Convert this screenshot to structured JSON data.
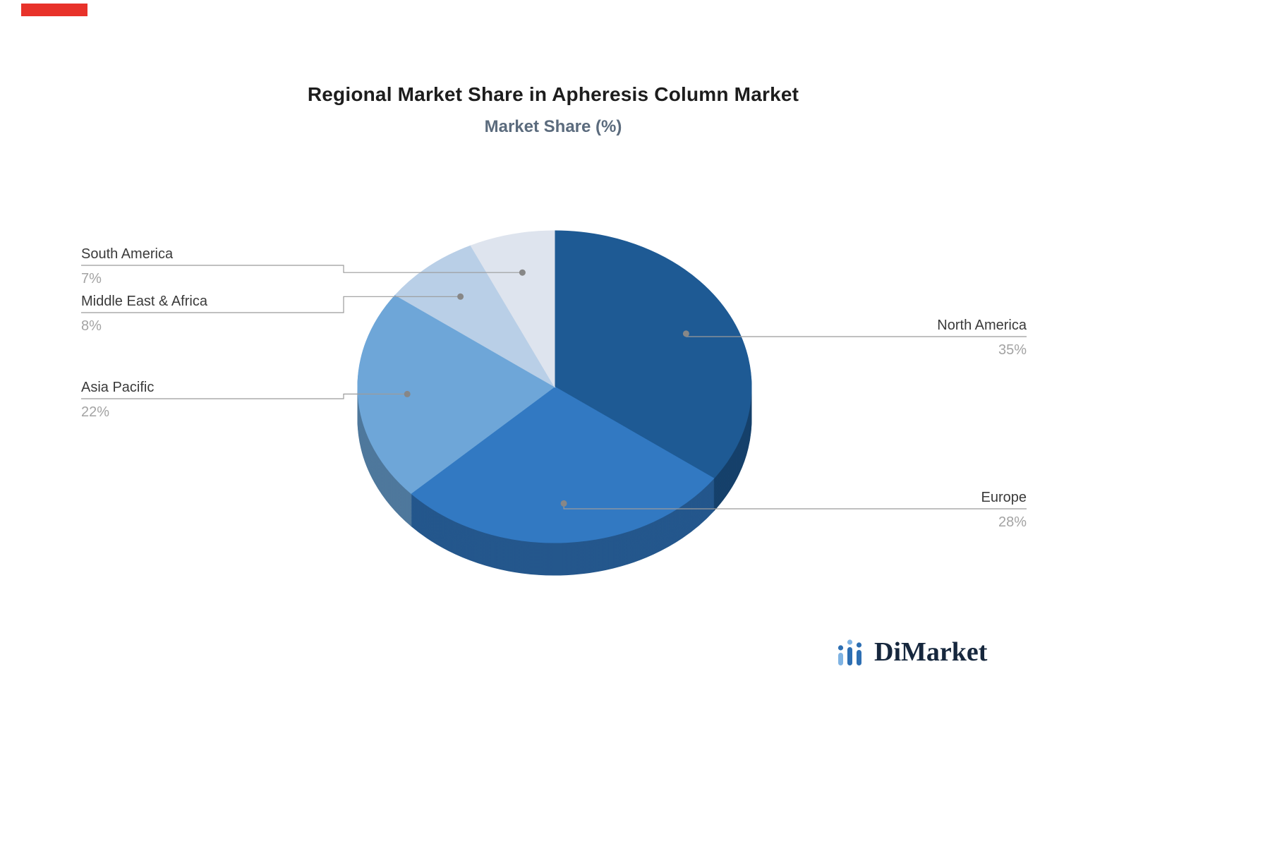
{
  "header": {
    "title": "Regional Market Share in Apheresis Column Market",
    "subtitle": "Market Share (%)"
  },
  "chart_data": {
    "type": "pie",
    "title": "Regional Market Share in Apheresis Column Market",
    "subtitle": "Market Share (%)",
    "unit": "%",
    "labels": [
      "North America",
      "Europe",
      "Asia Pacific",
      "Middle East & Africa",
      "South America"
    ],
    "values": [
      35,
      28,
      22,
      8,
      7
    ],
    "value_labels": [
      "35%",
      "28%",
      "22%",
      "8%",
      "7%"
    ],
    "colors": [
      "#1e5a94",
      "#3279c2",
      "#6ea6d8",
      "#b9cfe7",
      "#dee4ee"
    ],
    "effect": "3d",
    "start_angle_deg": 0,
    "direction": "clockwise",
    "legend": "none",
    "leader_line_color": "#9b9b9b",
    "label_color": "#3a3a3a",
    "value_color": "#a3a3a3"
  },
  "logo": {
    "text": "DiMarket",
    "icon": "bar-chart-logo-icon",
    "text_color": "#16273d",
    "icon_color": "#2d6fb3",
    "icon_light_color": "#7fb3e3"
  },
  "marker": {
    "color": "#e8322a"
  }
}
